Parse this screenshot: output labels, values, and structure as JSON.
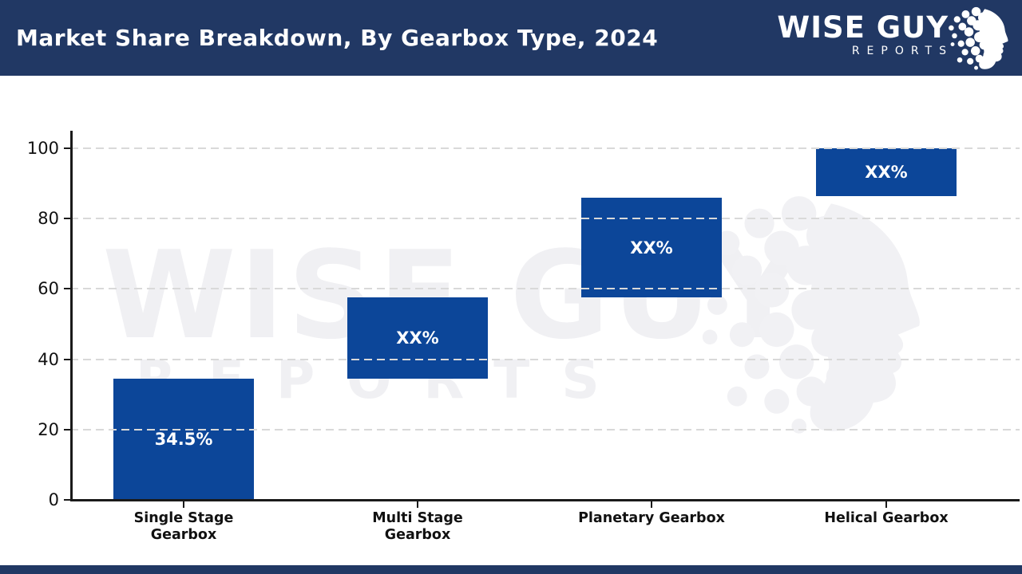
{
  "header": {
    "title": "Market Share Breakdown, By Gearbox Type, 2024",
    "bg_color": "#213864",
    "logo": {
      "line1": "WISE GUY",
      "line2": "REPORTS"
    }
  },
  "watermark": {
    "line1": "WISE GUY",
    "line2": "REPORTS"
  },
  "chart_data": {
    "type": "bar",
    "subtype": "waterfall",
    "title": "Market Share Breakdown, By Gearbox Type, 2024",
    "categories": [
      "Single Stage Gearbox",
      "Multi Stage Gearbox",
      "Planetary Gearbox",
      "Helical Gearbox"
    ],
    "category_lines": [
      [
        "Single Stage",
        "Gearbox"
      ],
      [
        "Multi Stage",
        "Gearbox"
      ],
      [
        "Planetary Gearbox"
      ],
      [
        "Helical Gearbox"
      ]
    ],
    "segments": [
      {
        "category": "Single Stage Gearbox",
        "start": 0,
        "end": 34.5,
        "label": "34.5%"
      },
      {
        "category": "Multi Stage Gearbox",
        "start": 34.5,
        "end": 57.5,
        "label": "XX%"
      },
      {
        "category": "Planetary Gearbox",
        "start": 57.5,
        "end": 86,
        "label": "XX%"
      },
      {
        "category": "Helical Gearbox",
        "start": 86.5,
        "end": 100,
        "label": "XX%"
      }
    ],
    "y_ticks": [
      0,
      20,
      40,
      60,
      80,
      100
    ],
    "ylim": [
      0,
      105
    ],
    "xlabel": "",
    "ylabel": "",
    "grid": "dashed-horizontal-over-bars",
    "grid_color": "#d9d9d9",
    "bar_color": "#0c4699",
    "bar_label_color": "#ffffff",
    "axis_color": "#1a1a1a",
    "legend": "none"
  },
  "footer": {
    "bg_color": "#213864"
  }
}
